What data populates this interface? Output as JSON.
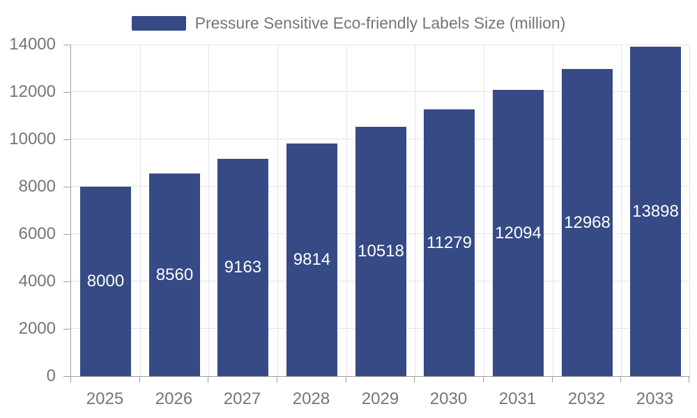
{
  "chart_data": {
    "type": "bar",
    "title": "",
    "legend": [
      "Pressure Sensitive Eco-friendly Labels Size (million)"
    ],
    "legend_position": "top-center",
    "categories": [
      "2025",
      "2026",
      "2027",
      "2028",
      "2029",
      "2030",
      "2031",
      "2032",
      "2033"
    ],
    "values": [
      8000,
      8560,
      9163,
      9814,
      10518,
      11279,
      12094,
      12968,
      13898
    ],
    "data_label_position": "inside-center",
    "xlabel": "",
    "ylabel": "",
    "ylim": [
      0,
      14000
    ],
    "yticks": [
      0,
      2000,
      4000,
      6000,
      8000,
      10000,
      12000,
      14000
    ],
    "grid": true,
    "colors": {
      "bar": "#364a85",
      "bar_label_text": "#ffffff",
      "axis_text": "#757575",
      "grid_line": "#e3e3e3",
      "axis_line": "#9e9e9e",
      "background": "#ffffff"
    }
  }
}
